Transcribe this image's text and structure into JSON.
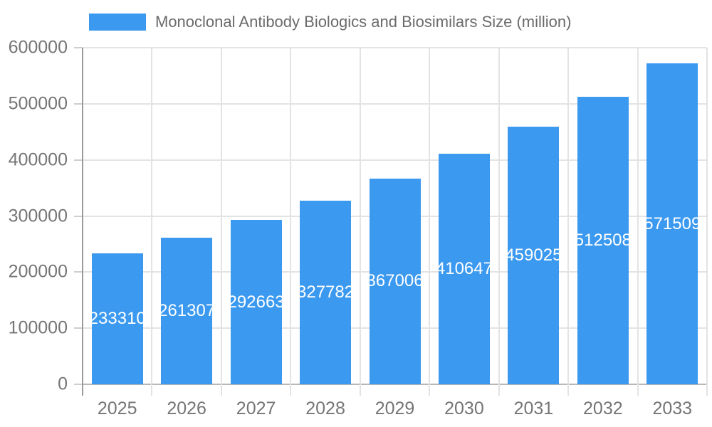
{
  "chart_data": {
    "type": "bar",
    "title": "Monoclonal Antibody Biologics and Biosimilars Size (million)",
    "legend": {
      "position": "top",
      "entries": [
        "Monoclonal Antibody Biologics and Biosimilars Size (million)"
      ]
    },
    "categories": [
      "2025",
      "2026",
      "2027",
      "2028",
      "2029",
      "2030",
      "2031",
      "2032",
      "2033"
    ],
    "series": [
      {
        "name": "Monoclonal Antibody Biologics and Biosimilars Size (million)",
        "values": [
          233310,
          261307,
          292663,
          327782,
          367006,
          410647,
          459025,
          512508,
          571509
        ]
      }
    ],
    "value_labels_visible": true,
    "xlabel": "",
    "ylabel": "",
    "ylim": [
      0,
      600000
    ],
    "ytick_step": 100000,
    "ytick_labels": [
      "0",
      "100000",
      "200000",
      "300000",
      "400000",
      "500000",
      "600000"
    ],
    "grid": true,
    "colors": {
      "bar": "#3b99f0",
      "bar_value_label": "#ffffff",
      "gridline": "#e3e3e3",
      "baseline": "#b8b8b8",
      "axis_line": "#9b9b9b",
      "tick": "#cecece",
      "axis_label": "#757575",
      "legend_text": "#6b6b6b",
      "background": "#ffffff"
    }
  }
}
